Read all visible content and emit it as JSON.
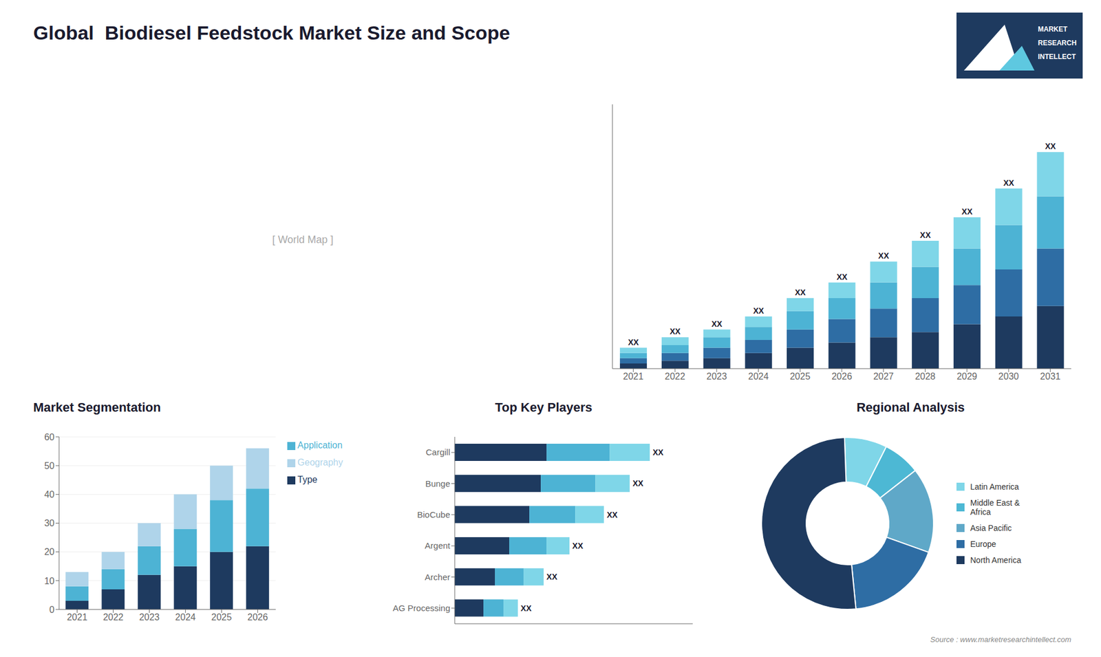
{
  "title": "Global  Biodiesel Feedstock Market Size and Scope",
  "annotations": [
    "[ World Map ]",
    "MARKET",
    "RESEARCH",
    "INTELLECT",
    "Source : www.marketresearchintellect.com"
  ],
  "chart_data": [
    {
      "type": "bar",
      "stacked": true,
      "categories": [
        "2021",
        "2022",
        "2023",
        "2024",
        "2025",
        "2026",
        "2027",
        "2028",
        "2029",
        "2030",
        "2031"
      ],
      "series": [
        {
          "color": "#1e3a5f",
          "values": [
            2,
            3,
            4,
            6,
            8,
            10,
            12,
            14,
            17,
            20,
            24
          ]
        },
        {
          "color": "#2e6da4",
          "values": [
            2,
            3,
            4,
            5,
            7,
            9,
            11,
            13,
            15,
            18,
            22
          ]
        },
        {
          "color": "#4db3d4",
          "values": [
            2,
            3,
            4,
            5,
            7,
            8,
            10,
            12,
            14,
            17,
            20
          ]
        },
        {
          "color": "#7fd6e8",
          "values": [
            2,
            3,
            3,
            4,
            5,
            6,
            8,
            10,
            12,
            14,
            17
          ]
        }
      ],
      "total_labels": [
        "XX",
        "XX",
        "XX",
        "XX",
        "XX",
        "XX",
        "XX",
        "XX",
        "XX",
        "XX",
        "XX"
      ],
      "ylim": [
        0,
        101.26
      ],
      "tick_labels": "x",
      "grid": false
    },
    {
      "type": "bar",
      "title": "Market Segmentation",
      "stacked": true,
      "categories": [
        "2021",
        "2022",
        "2023",
        "2024",
        "2025",
        "2026"
      ],
      "series": [
        {
          "name": "Type",
          "color": "#1e3a5f",
          "values": [
            3,
            7,
            12,
            15,
            20,
            22
          ]
        },
        {
          "name": "Application",
          "color": "#4db3d4",
          "values": [
            5,
            7,
            10,
            13,
            18,
            20
          ]
        },
        {
          "name": "Geography",
          "color": "#afd4ea",
          "values": [
            5,
            6,
            8,
            12,
            12,
            14
          ]
        }
      ],
      "ylim": [
        0,
        60
      ],
      "yticks": [
        0,
        10,
        20,
        30,
        40,
        50,
        60
      ],
      "grid": true,
      "legend": "right"
    },
    {
      "type": "bar",
      "title": "Top Key Players",
      "orientation": "horizontal",
      "stacked": true,
      "categories": [
        "Cargill",
        "Bunge",
        "BioCube",
        "Argent",
        "Archer",
        "AG Processing"
      ],
      "series": [
        {
          "color": "#1e3a5f",
          "values": [
            32,
            30,
            26,
            19,
            14,
            10
          ]
        },
        {
          "color": "#4db3d4",
          "values": [
            22,
            19,
            16,
            13,
            10,
            7
          ]
        },
        {
          "color": "#7fd6e8",
          "values": [
            14,
            12,
            10,
            8,
            7,
            5
          ]
        }
      ],
      "total_labels": [
        "XX",
        "XX",
        "XX",
        "XX",
        "XX",
        "XX"
      ],
      "xlim": [
        0,
        82.96
      ],
      "tick_labels": "y",
      "grid": false
    },
    {
      "type": "pie",
      "title": "Regional Analysis",
      "categories": [
        "Latin America",
        "Middle East &\nAfrica",
        "Asia Pacific",
        "Europe",
        "North America"
      ],
      "values": [
        8,
        7,
        16,
        18,
        51
      ],
      "colors": [
        "#7fd6e8",
        "#4db8d4",
        "#5fa8c8",
        "#2e6da4",
        "#1e3a5f"
      ],
      "legend": "right"
    }
  ]
}
